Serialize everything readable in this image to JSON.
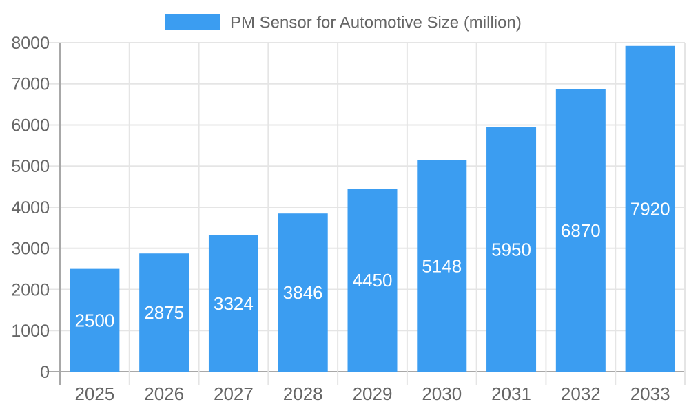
{
  "chart_data": {
    "type": "bar",
    "title": "PM Sensor for Automotive Size (million)",
    "legend_label": "PM Sensor for Automotive Size (million)",
    "legend_position": "top",
    "categories": [
      "2025",
      "2026",
      "2027",
      "2028",
      "2029",
      "2030",
      "2031",
      "2032",
      "2033"
    ],
    "values": [
      2500,
      2875,
      3324,
      3846,
      4450,
      5148,
      5950,
      6870,
      7920
    ],
    "xlabel": "",
    "ylabel": "",
    "ylim": [
      0,
      8000
    ],
    "ytick_interval": 1000,
    "yticks": [
      0,
      1000,
      2000,
      3000,
      4000,
      5000,
      6000,
      7000,
      8000
    ],
    "grid": true,
    "value_labels_shown": true,
    "colors": {
      "bar": "#3B9DF1",
      "grid_line": "#e5e5e5",
      "axis_line": "#a8a8a8",
      "tick_label": "#666666",
      "legend_label": "#666666",
      "value_label": "#ffffff",
      "background": "#ffffff"
    }
  }
}
